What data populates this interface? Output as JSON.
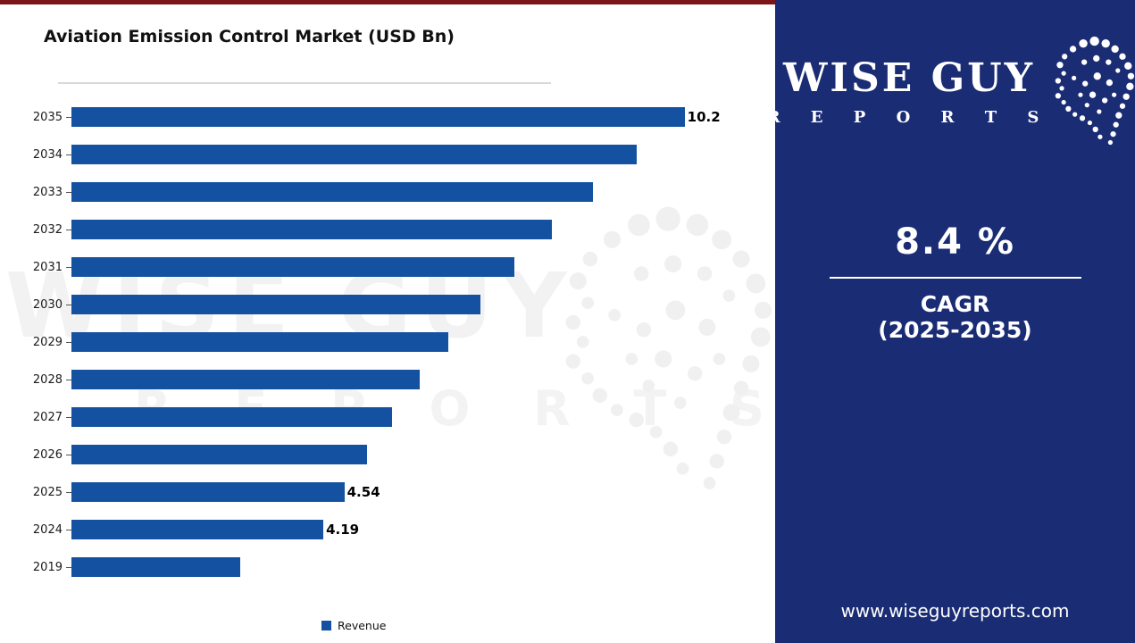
{
  "chart_data": {
    "type": "bar",
    "orientation": "horizontal",
    "title": "Aviation Emission Control Market (USD Bn)",
    "categories": [
      "2035",
      "2034",
      "2033",
      "2032",
      "2031",
      "2030",
      "2029",
      "2028",
      "2027",
      "2026",
      "2025",
      "2024",
      "2019"
    ],
    "values": [
      10.2,
      9.4,
      8.67,
      7.99,
      7.37,
      6.8,
      6.27,
      5.79,
      5.34,
      4.92,
      4.54,
      4.19,
      2.8
    ],
    "data_labels": {
      "2035": "10.2",
      "2025": "4.54",
      "2024": "4.19"
    },
    "legend": [
      "Revenue"
    ],
    "legend_position": "bottom-center",
    "grid": false,
    "xlim": [
      0,
      11.2
    ],
    "bar_color": "#1451a0"
  },
  "colors": {
    "top_strip": "#7d1416",
    "panel_background": "#1a2c74",
    "bar": "#1451a0"
  },
  "watermark": {
    "line1": "WISE GUY",
    "line2": "R E P O R T S"
  },
  "panel": {
    "brand_top": "WISE GUY",
    "brand_bottom": "R E P O R T S",
    "cagr_value": "8.4 %",
    "cagr_title": "CAGR",
    "cagr_range": "(2025-2035)",
    "website": "www.wiseguyreports.com",
    "bg_color": "#1a2c74"
  }
}
